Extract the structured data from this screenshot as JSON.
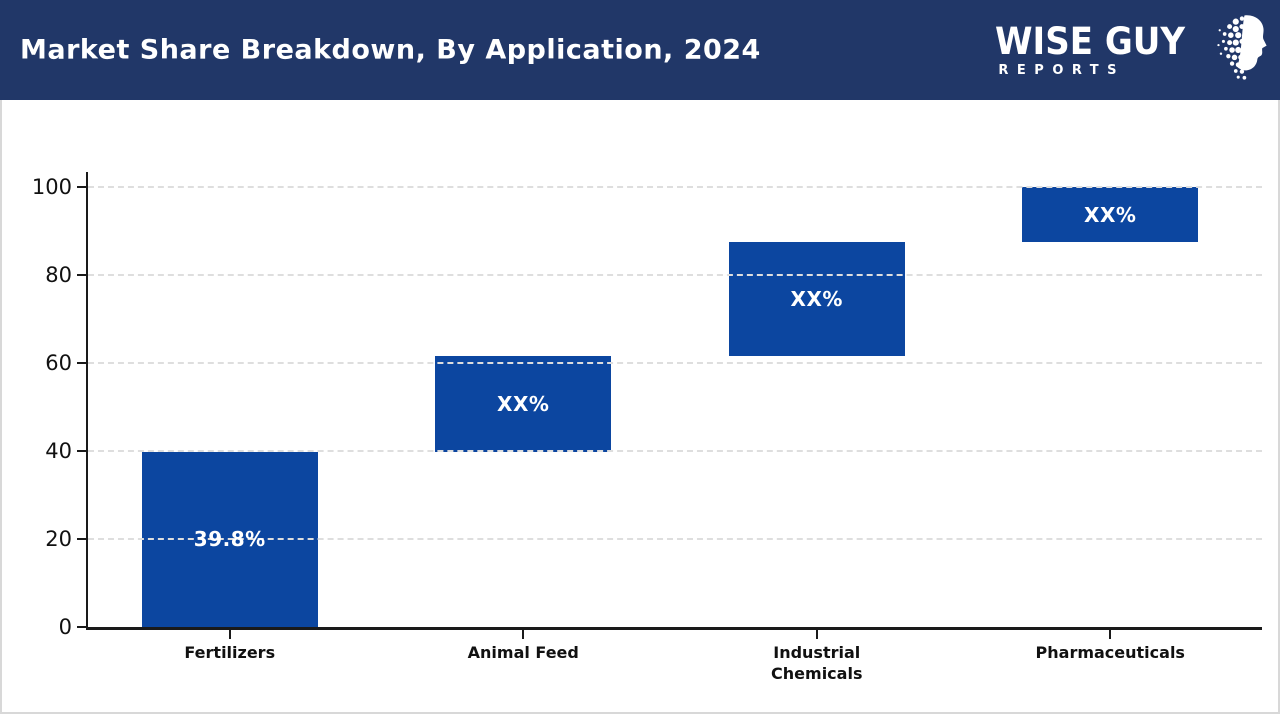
{
  "header": {
    "title": "Market Share Breakdown, By Application, 2024",
    "logo": {
      "line1": "WISE GUY",
      "line2": "REPORTS"
    }
  },
  "watermark": {
    "line1": "WISE GUY",
    "line2": "REPORTS"
  },
  "colors": {
    "header_bg": "#213768",
    "bar": "#0c46a0",
    "grid": "#dedede",
    "axis": "#1a1a1a",
    "bar_label": "#ffffff",
    "watermark": "#f1f1f1",
    "figure_border": "#d8d8d8"
  },
  "chart_data": {
    "type": "bar",
    "subtype": "waterfall",
    "title": "Market Share Breakdown, By Application, 2024",
    "categories": [
      "Fertilizers",
      "Animal Feed",
      "Industrial Chemicals",
      "Pharmaceuticals"
    ],
    "segments": [
      {
        "category": "Fertilizers",
        "start": 0,
        "end": 39.8,
        "label": "39.8%"
      },
      {
        "category": "Animal Feed",
        "start": 39.8,
        "end": 61.5,
        "label": "XX%"
      },
      {
        "category": "Industrial Chemicals",
        "start": 61.5,
        "end": 87.5,
        "label": "XX%"
      },
      {
        "category": "Pharmaceuticals",
        "start": 87.5,
        "end": 100,
        "label": "XX%"
      }
    ],
    "yticks": [
      0,
      20,
      40,
      60,
      80,
      100
    ],
    "ylim": [
      0,
      100
    ],
    "xlabel": "",
    "ylabel": "",
    "unit": "%",
    "grid": "horizontal-dashed",
    "legend": "none",
    "bar_color": "#0c46a0"
  }
}
